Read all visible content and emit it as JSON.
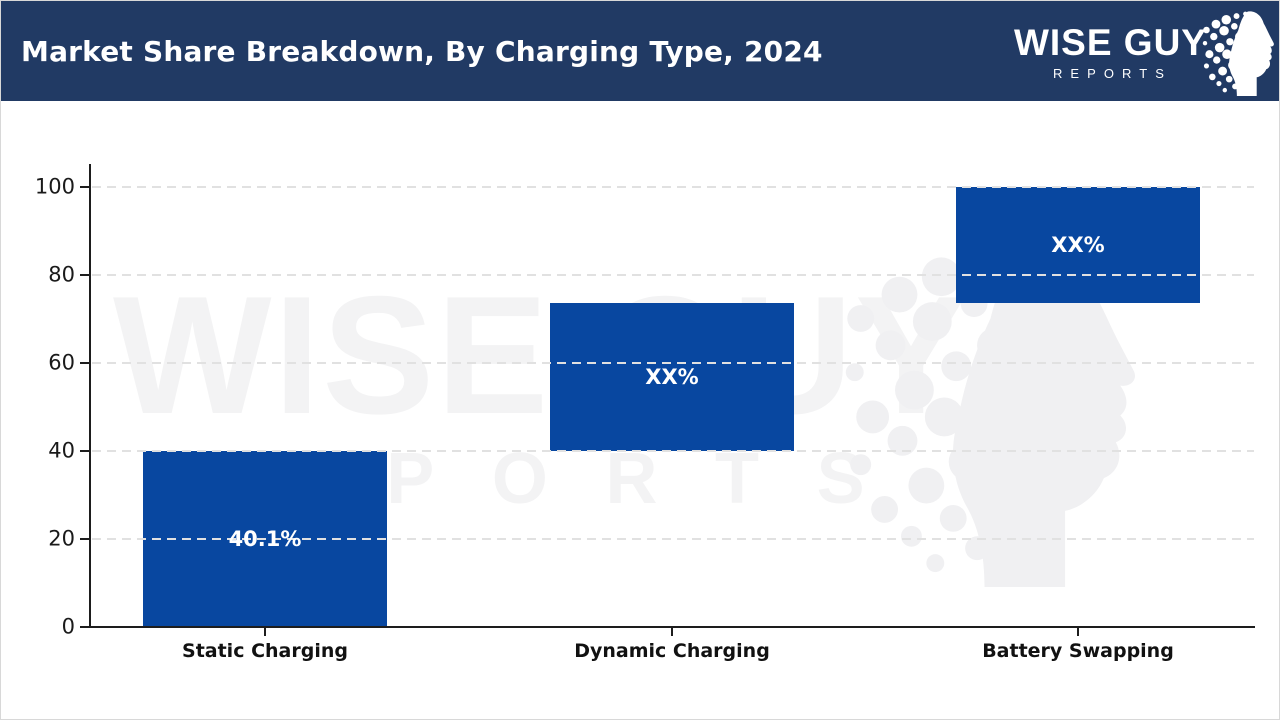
{
  "header": {
    "title": "Market Share Breakdown, By Charging Type, 2024",
    "bg_color": "#213a64",
    "logo": {
      "wordmark": "WISE GUY",
      "subtitle": "REPORTS"
    }
  },
  "watermark": {
    "line1": "WISE GUY",
    "line2": "REPORTS"
  },
  "chart_data": {
    "type": "bar",
    "subtype": "floating-waterfall",
    "title": "Market Share Breakdown, By Charging Type, 2024",
    "categories": [
      "Static Charging",
      "Dynamic Charging",
      "Battery Swapping"
    ],
    "segments": [
      {
        "category": "Static Charging",
        "start": 0,
        "end": 40.1,
        "label": "40.1%"
      },
      {
        "category": "Dynamic Charging",
        "start": 40.1,
        "end": 73.7,
        "label": "XX%"
      },
      {
        "category": "Battery Swapping",
        "start": 73.7,
        "end": 100,
        "label": "XX%"
      }
    ],
    "xlabel": "",
    "ylabel": "",
    "ylim": [
      0,
      100
    ],
    "yticks": [
      0,
      20,
      40,
      60,
      80,
      100
    ],
    "grid": "horizontal-dashed",
    "legend": "none",
    "bar_color": "#0847a0",
    "bar_label_color": "#ffffff"
  }
}
